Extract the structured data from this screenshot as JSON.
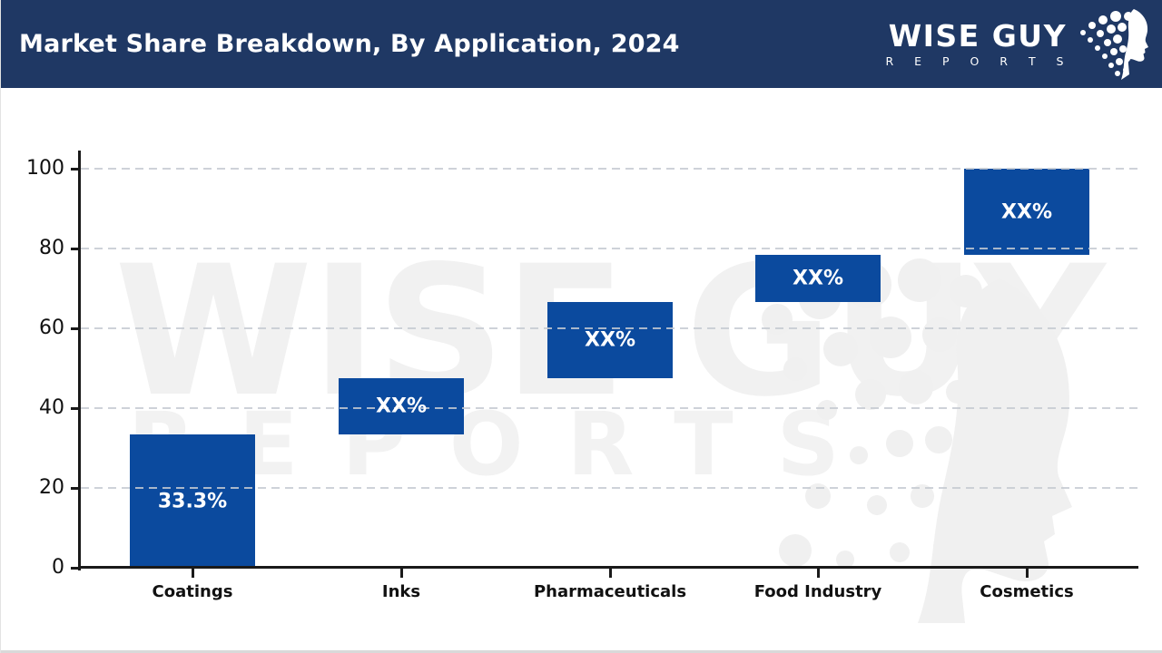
{
  "header": {
    "title": "Market Share Breakdown, By Application, 2024",
    "bg_color": "#1f3864",
    "logo": {
      "line1": "WISE GUY",
      "line2": "R E P O R T S"
    }
  },
  "watermark": {
    "line1": "WISE GUY",
    "line2": "REPORTS"
  },
  "chart_data": {
    "type": "bar",
    "subtype": "waterfall",
    "title": "Market Share Breakdown, By Application, 2024",
    "categories": [
      "Coatings",
      "Inks",
      "Pharmaceuticals",
      "Food Industry",
      "Cosmetics"
    ],
    "segments": [
      {
        "category": "Coatings",
        "start": 0,
        "end": 33.3,
        "label": "33.3%"
      },
      {
        "category": "Inks",
        "start": 33.3,
        "end": 47.5,
        "label": "XX%"
      },
      {
        "category": "Pharmaceuticals",
        "start": 47.5,
        "end": 66.7,
        "label": "XX%"
      },
      {
        "category": "Food Industry",
        "start": 66.7,
        "end": 78.4,
        "label": "XX%"
      },
      {
        "category": "Cosmetics",
        "start": 78.4,
        "end": 100,
        "label": "XX%"
      }
    ],
    "yticks": [
      0,
      20,
      40,
      60,
      80,
      100
    ],
    "ylim": [
      0,
      105
    ],
    "xlabel": "",
    "ylabel": "",
    "grid": "horizontal-dashed",
    "legend": "none",
    "bar_color": "#0b4a9e",
    "bar_label_color": "#ffffff",
    "axis_color": "#1a1a1a"
  }
}
